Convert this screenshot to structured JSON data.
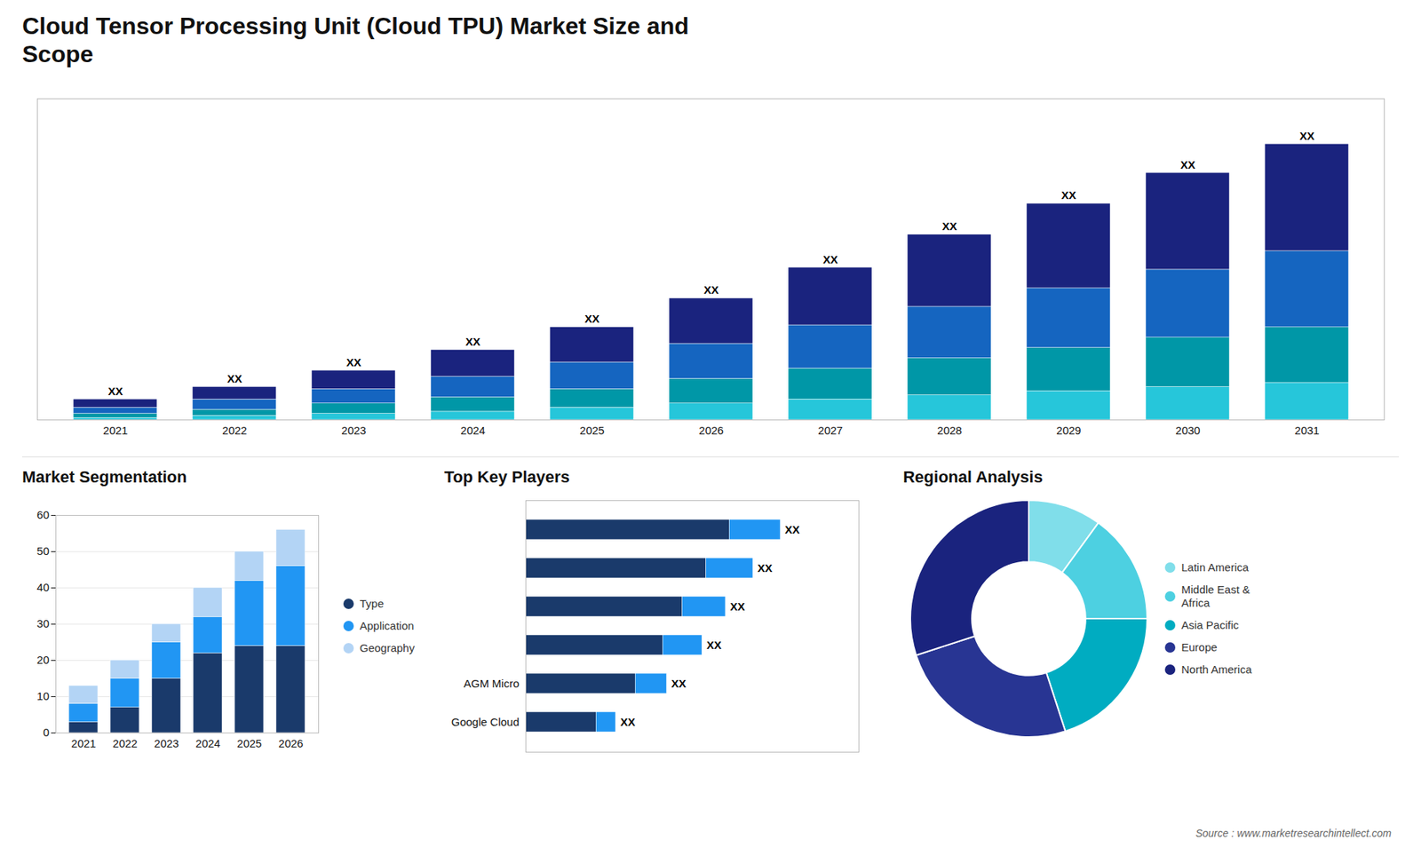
{
  "chart_data": [
    {
      "type": "bar",
      "title": "Cloud Tensor Processing Unit (Cloud TPU) Market Size and\nScope",
      "annotations": [
        "Source : www.marketresearchintellect.com"
      ],
      "stacked": true,
      "categories": [
        "2021",
        "2022",
        "2023",
        "2024",
        "2025",
        "2026",
        "2027",
        "2028",
        "2029",
        "2030",
        "2031"
      ],
      "series": [
        {
          "color": "#26c6da",
          "values": [
            1,
            2,
            3,
            4,
            6,
            8,
            10,
            12,
            14,
            16,
            18
          ]
        },
        {
          "color": "#0097a7",
          "values": [
            2,
            3,
            5,
            7,
            9,
            12,
            15,
            18,
            21,
            24,
            27
          ]
        },
        {
          "color": "#1565c0",
          "values": [
            3,
            5,
            7,
            10,
            13,
            17,
            21,
            25,
            29,
            33,
            37
          ]
        },
        {
          "color": "#1a237e",
          "values": [
            4,
            6,
            9,
            13,
            17,
            22,
            28,
            35,
            41,
            47,
            52
          ]
        }
      ],
      "data_labels": true,
      "value_labels": [
        "XX",
        "XX",
        "XX",
        "XX",
        "XX",
        "XX",
        "XX",
        "XX",
        "XX",
        "XX",
        "XX"
      ],
      "ylim": [
        0,
        156
      ],
      "tick_labels": "x",
      "grid": false
    },
    {
      "type": "bar",
      "title": "Market Segmentation",
      "stacked": true,
      "categories": [
        "2021",
        "2022",
        "2023",
        "2024",
        "2025",
        "2026"
      ],
      "series": [
        {
          "name": "Type",
          "color": "#1a3a6b",
          "values": [
            3,
            7,
            15,
            22,
            24,
            24
          ]
        },
        {
          "name": "Application",
          "color": "#2196f3",
          "values": [
            5,
            8,
            10,
            10,
            18,
            22
          ]
        },
        {
          "name": "Geography",
          "color": "#b3d4f5",
          "values": [
            5,
            5,
            5,
            8,
            8,
            10
          ]
        }
      ],
      "ylim": [
        0,
        60
      ],
      "yticks": [
        0,
        10,
        20,
        30,
        40,
        50,
        60
      ],
      "grid": true,
      "legend": "right"
    },
    {
      "type": "bar",
      "title": "Top Key Players",
      "orientation": "horizontal",
      "stacked": true,
      "categories": [
        null,
        null,
        null,
        null,
        "AGM Micro",
        "Google Cloud"
      ],
      "series": [
        {
          "color": "#1a3a6b",
          "values": [
            52,
            46,
            40,
            35,
            28,
            18
          ]
        },
        {
          "color": "#2196f3",
          "values": [
            13,
            12,
            11,
            10,
            8,
            5
          ]
        }
      ],
      "data_labels": true,
      "value_labels": [
        "XX",
        "XX",
        "XX",
        "XX",
        "XX",
        "XX"
      ],
      "xlim": [
        0,
        85
      ],
      "tick_labels": "y",
      "grid": false
    },
    {
      "type": "donut",
      "title": "Regional Analysis",
      "categories": [
        "Latin America",
        "Middle East &\nAfrica",
        "Asia Pacific",
        "Europe",
        "North America"
      ],
      "values": [
        10,
        15,
        20,
        25,
        30
      ],
      "colors": [
        "#80deea",
        "#4dd0e1",
        "#00acc1",
        "#283593",
        "#1a237e"
      ],
      "legend": "right"
    }
  ]
}
